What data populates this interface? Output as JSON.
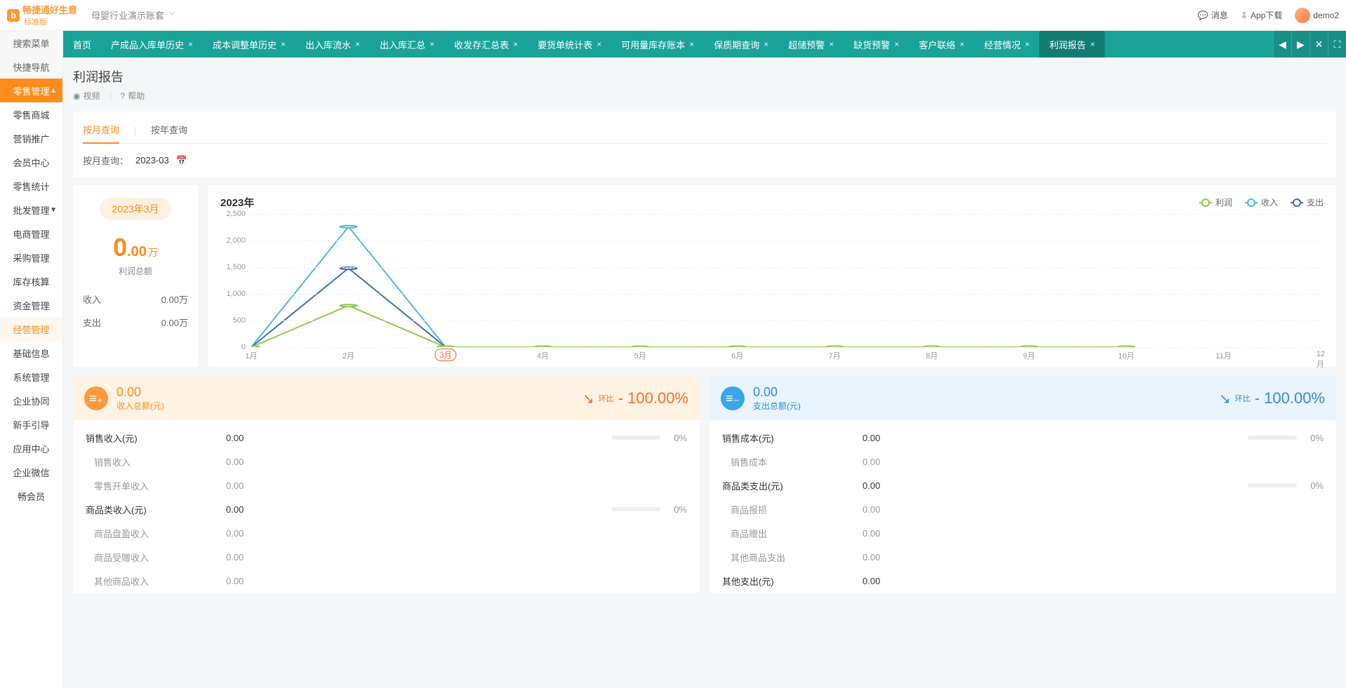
{
  "top": {
    "logo_text": "畅捷通好生意",
    "logo_sub": "标准版",
    "account": "母婴行业演示账套",
    "message": "消息",
    "app": "App下载",
    "user": "demo2"
  },
  "sidebar": {
    "items": [
      {
        "label": "搜索菜单",
        "cls": "search"
      },
      {
        "label": "快捷导航",
        "cls": "nav"
      },
      {
        "label": "零售管理",
        "cls": "active",
        "caret": "▲"
      },
      {
        "label": "零售商城",
        "cls": ""
      },
      {
        "label": "营销推广",
        "cls": ""
      },
      {
        "label": "会员中心",
        "cls": ""
      },
      {
        "label": "零售统计",
        "cls": ""
      },
      {
        "label": "批发管理",
        "cls": "",
        "caret": "▼"
      },
      {
        "label": "电商管理",
        "cls": ""
      },
      {
        "label": "采购管理",
        "cls": ""
      },
      {
        "label": "库存核算",
        "cls": ""
      },
      {
        "label": "资金管理",
        "cls": ""
      },
      {
        "label": "经营管理",
        "cls": "highlight"
      },
      {
        "label": "基础信息",
        "cls": ""
      },
      {
        "label": "系统管理",
        "cls": ""
      },
      {
        "label": "企业协同",
        "cls": ""
      },
      {
        "label": "新手引导",
        "cls": ""
      },
      {
        "label": "应用中心",
        "cls": ""
      },
      {
        "label": "企业微信",
        "cls": ""
      },
      {
        "label": "畅会员",
        "cls": ""
      }
    ]
  },
  "tabs": [
    {
      "label": "首页",
      "closable": false
    },
    {
      "label": "产成品入库单历史",
      "closable": true
    },
    {
      "label": "成本调整单历史",
      "closable": true
    },
    {
      "label": "出入库流水",
      "closable": true
    },
    {
      "label": "出入库汇总",
      "closable": true
    },
    {
      "label": "收发存汇总表",
      "closable": true
    },
    {
      "label": "要货单统计表",
      "closable": true
    },
    {
      "label": "可用量库存账本",
      "closable": true
    },
    {
      "label": "保质期查询",
      "closable": true
    },
    {
      "label": "超储预警",
      "closable": true
    },
    {
      "label": "缺货预警",
      "closable": true
    },
    {
      "label": "客户联络",
      "closable": true
    },
    {
      "label": "经营情况",
      "closable": true
    },
    {
      "label": "利润报告",
      "closable": true,
      "active": true
    }
  ],
  "page": {
    "title": "利润报告",
    "video": "视频",
    "help": "帮助",
    "query_tabs": [
      "按月查询",
      "按年查询"
    ],
    "query_active": 0,
    "query_label": "按月查询：",
    "query_value": "2023-03"
  },
  "summary": {
    "period": "2023年3月",
    "big_int": "0",
    "big_dec": ".00",
    "big_unit": "万",
    "sub": "利润总额",
    "income_label": "收入",
    "income_value": "0.00万",
    "expense_label": "支出",
    "expense_value": "0.00万"
  },
  "chart": {
    "title": "2023年",
    "legend": [
      {
        "name": "利润",
        "color": "#8fc94e"
      },
      {
        "name": "收入",
        "color": "#4cb7e8"
      },
      {
        "name": "支出",
        "color": "#3c6fb5"
      }
    ],
    "y_ticks": [
      0,
      500,
      1000,
      1500,
      2000,
      2500
    ],
    "x_labels": [
      "1月",
      "2月",
      "3月",
      "4月",
      "5月",
      "6月",
      "7月",
      "8月",
      "9月",
      "10月",
      "11月",
      "12月"
    ],
    "x_active_index": 2,
    "ymax": 2500,
    "series": {
      "profit": [
        0,
        780,
        0,
        0,
        0,
        0,
        0,
        0,
        0,
        0,
        0,
        0
      ],
      "income": [
        0,
        2260,
        0,
        0,
        0,
        0,
        0,
        0,
        0,
        0,
        0,
        0
      ],
      "expense": [
        0,
        1480,
        0,
        0,
        0,
        0,
        0,
        0,
        0,
        0,
        0,
        0
      ]
    },
    "visible_points": 9
  },
  "panels": {
    "income": {
      "head_value": "0.00",
      "head_label": "收入总额(元)",
      "head_pct": "- 100.00%",
      "hb": "环比",
      "rows": [
        {
          "kind": "header",
          "name": "销售收入(元)",
          "val": "0.00",
          "pct": "0%"
        },
        {
          "kind": "sub",
          "name": "销售收入",
          "val": "0.00"
        },
        {
          "kind": "sub",
          "name": "零售开单收入",
          "val": "0.00"
        },
        {
          "kind": "header",
          "name": "商品类收入(元)",
          "val": "0.00",
          "pct": "0%"
        },
        {
          "kind": "sub",
          "name": "商品盘盈收入",
          "val": "0.00"
        },
        {
          "kind": "sub",
          "name": "商品受赠收入",
          "val": "0.00"
        },
        {
          "kind": "sub",
          "name": "其他商品收入",
          "val": "0.00"
        }
      ]
    },
    "expense": {
      "head_value": "0.00",
      "head_label": "支出总额(元)",
      "head_pct": "- 100.00%",
      "hb": "环比",
      "rows": [
        {
          "kind": "header",
          "name": "销售成本(元)",
          "val": "0.00",
          "pct": "0%"
        },
        {
          "kind": "sub",
          "name": "销售成本",
          "val": "0.00"
        },
        {
          "kind": "header",
          "name": "商品类支出(元)",
          "val": "0.00",
          "pct": "0%"
        },
        {
          "kind": "sub",
          "name": "商品报损",
          "val": "0.00"
        },
        {
          "kind": "sub",
          "name": "商品赠出",
          "val": "0.00"
        },
        {
          "kind": "sub",
          "name": "其他商品支出",
          "val": "0.00"
        },
        {
          "kind": "header",
          "name": "其他支出(元)",
          "val": "0.00"
        }
      ]
    }
  }
}
